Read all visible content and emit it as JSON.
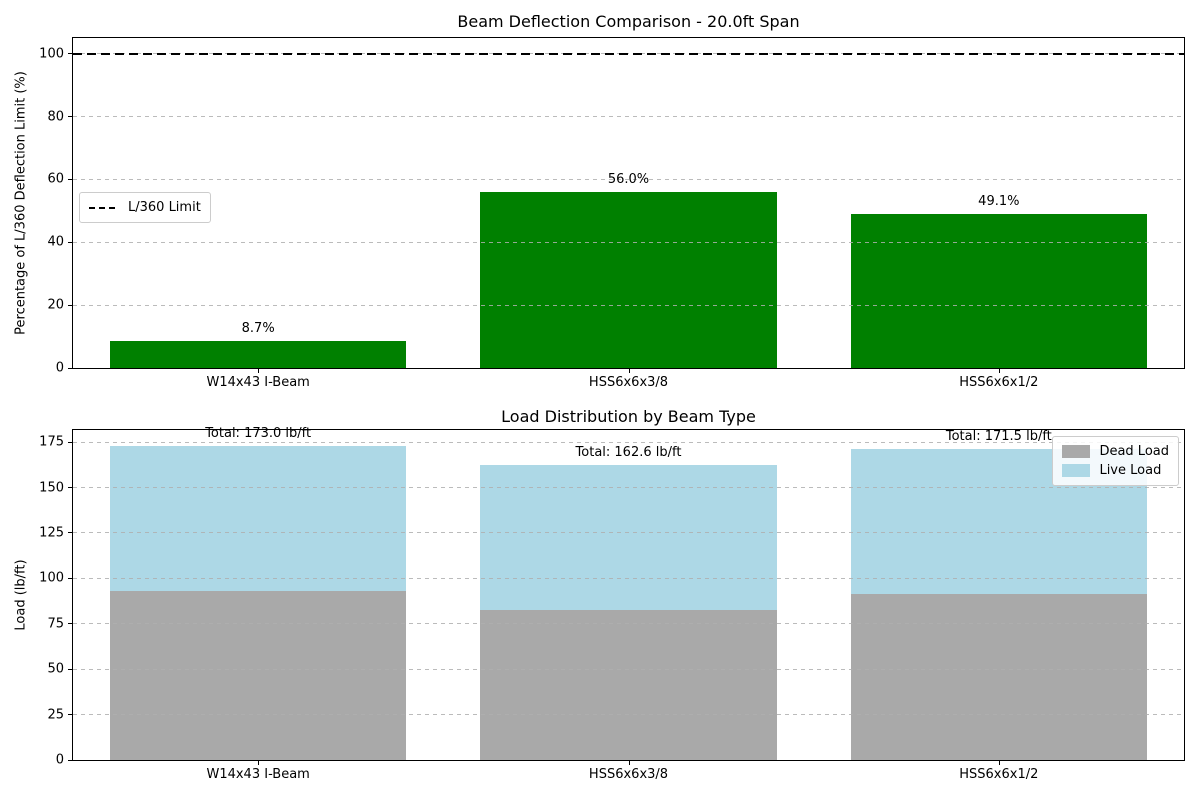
{
  "figure": {
    "background": "#ffffff"
  },
  "chart_data": [
    {
      "id": "deflection",
      "type": "bar",
      "title": "Beam Deflection Comparison - 20.0ft Span",
      "ylabel": "Percentage of L/360 Deflection Limit (%)",
      "categories": [
        "W14x43 I-Beam",
        "HSS6x6x3/8",
        "HSS6x6x1/2"
      ],
      "values": [
        8.7,
        56.0,
        49.1
      ],
      "bar_labels": [
        "8.7%",
        "56.0%",
        "49.1%"
      ],
      "bar_color": "#008000",
      "ylim": [
        0,
        105
      ],
      "yticks": [
        0,
        20,
        40,
        60,
        80,
        100
      ],
      "grid": true,
      "limit_line": {
        "value": 100,
        "label": "L/360 Limit",
        "color": "#000000"
      },
      "legend": {
        "position": "center-left",
        "entries": [
          {
            "label": "L/360 Limit",
            "swatch": "dashed-line",
            "color": "#000000"
          }
        ]
      }
    },
    {
      "id": "loads",
      "type": "stacked-bar",
      "title": "Load Distribution by Beam Type",
      "ylabel": "Load (lb/ft)",
      "categories": [
        "W14x43 I-Beam",
        "HSS6x6x3/8",
        "HSS6x6x1/2"
      ],
      "series": [
        {
          "name": "Dead Load",
          "color": "#a9a9a9",
          "values": [
            93.0,
            82.6,
            91.5
          ]
        },
        {
          "name": "Live Load",
          "color": "#add8e6",
          "values": [
            80.0,
            80.0,
            80.0
          ]
        }
      ],
      "totals": [
        173.0,
        162.6,
        171.5
      ],
      "total_labels": [
        "Total: 173.0 lb/ft",
        "Total: 162.6 lb/ft",
        "Total: 171.5 lb/ft"
      ],
      "ylim": [
        0,
        181.7
      ],
      "yticks": [
        0,
        25,
        50,
        75,
        100,
        125,
        150,
        175
      ],
      "grid": true,
      "legend": {
        "position": "upper-right",
        "entries": [
          {
            "label": "Dead Load",
            "color": "#a9a9a9"
          },
          {
            "label": "Live Load",
            "color": "#add8e6"
          }
        ]
      }
    }
  ]
}
